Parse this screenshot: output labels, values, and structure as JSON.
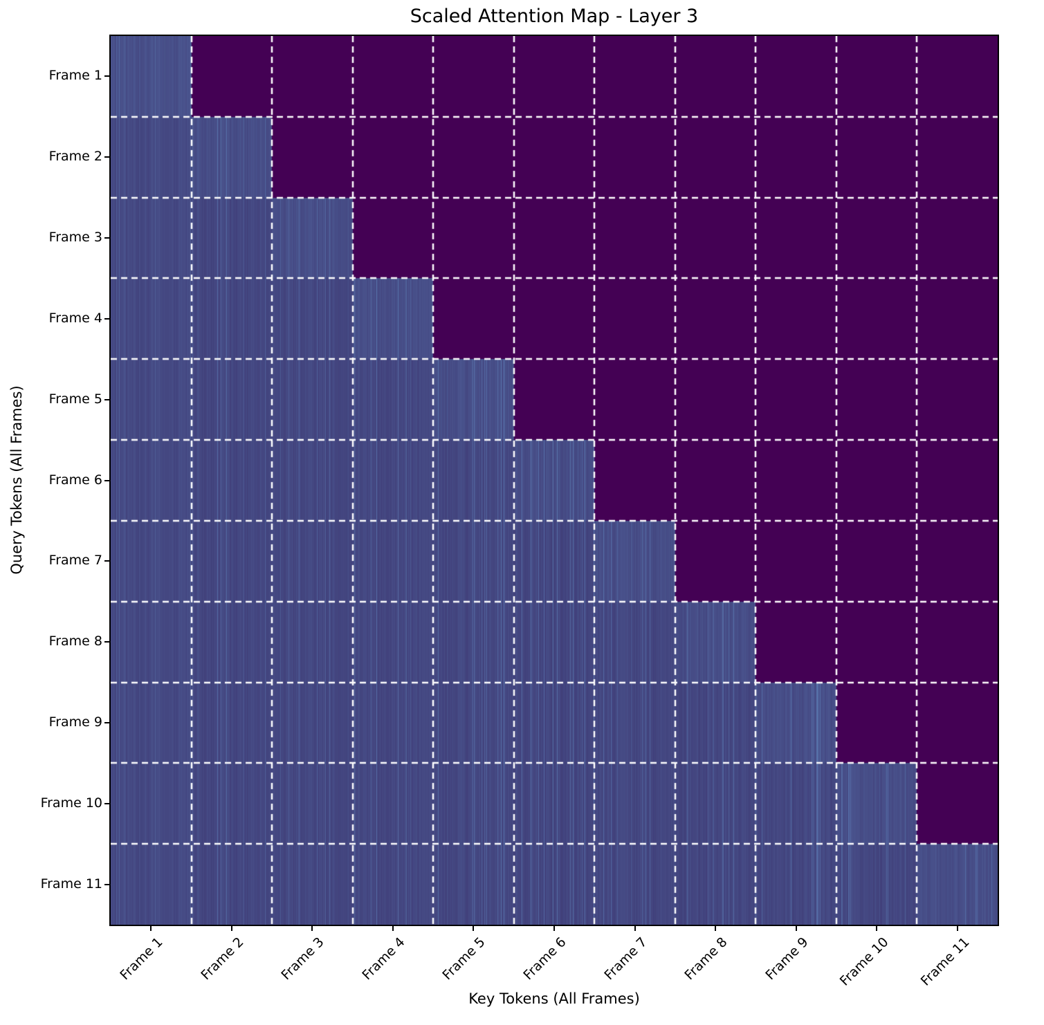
{
  "chart_data": {
    "type": "heatmap",
    "title": "Scaled Attention Map - Layer 3",
    "xlabel": "Key Tokens (All Frames)",
    "ylabel": "Query Tokens (All Frames)",
    "n_frames": 11,
    "x_tick_labels": [
      "Frame 1",
      "Frame 2",
      "Frame 3",
      "Frame 4",
      "Frame 5",
      "Frame 6",
      "Frame 7",
      "Frame 8",
      "Frame 9",
      "Frame 10",
      "Frame 11"
    ],
    "y_tick_labels": [
      "Frame 1",
      "Frame 2",
      "Frame 3",
      "Frame 4",
      "Frame 5",
      "Frame 6",
      "Frame 7",
      "Frame 8",
      "Frame 9",
      "Frame 10",
      "Frame 11"
    ],
    "pattern": "block-causal lower-triangular frame attention mask",
    "block_attention_matrix": [
      [
        1,
        0,
        0,
        0,
        0,
        0,
        0,
        0,
        0,
        0,
        0
      ],
      [
        1,
        1,
        0,
        0,
        0,
        0,
        0,
        0,
        0,
        0,
        0
      ],
      [
        1,
        1,
        1,
        0,
        0,
        0,
        0,
        0,
        0,
        0,
        0
      ],
      [
        1,
        1,
        1,
        1,
        0,
        0,
        0,
        0,
        0,
        0,
        0
      ],
      [
        1,
        1,
        1,
        1,
        1,
        0,
        0,
        0,
        0,
        0,
        0
      ],
      [
        1,
        1,
        1,
        1,
        1,
        1,
        0,
        0,
        0,
        0,
        0
      ],
      [
        1,
        1,
        1,
        1,
        1,
        1,
        1,
        0,
        0,
        0,
        0
      ],
      [
        1,
        1,
        1,
        1,
        1,
        1,
        1,
        1,
        0,
        0,
        0
      ],
      [
        1,
        1,
        1,
        1,
        1,
        1,
        1,
        1,
        1,
        0,
        0
      ],
      [
        1,
        1,
        1,
        1,
        1,
        1,
        1,
        1,
        1,
        1,
        0
      ],
      [
        1,
        1,
        1,
        1,
        1,
        1,
        1,
        1,
        1,
        1,
        1
      ]
    ],
    "colormap": "viridis",
    "colors": {
      "masked_block": "#440154",
      "attended_block_low": "#3c3570",
      "attended_block_high": "#5a78b0",
      "gridline": "#ffffff"
    },
    "gridline_style": "dashed",
    "legend": "none"
  }
}
